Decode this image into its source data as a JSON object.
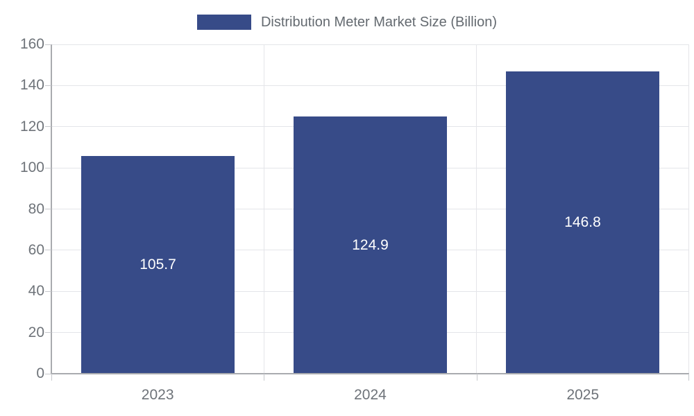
{
  "chart_data": {
    "type": "bar",
    "title": "Distribution Meter Market Size (Billion)",
    "legend_label": "Distribution Meter Market Size (Billion)",
    "legend_position": "top-center",
    "categories": [
      "2023",
      "2024",
      "2025"
    ],
    "series": [
      {
        "name": "Distribution Meter Market Size (Billion)",
        "values": [
          105.7,
          124.9,
          146.8
        ]
      }
    ],
    "bar_labels": [
      "105.7",
      "124.9",
      "146.8"
    ],
    "xlabel": "",
    "ylabel": "",
    "ylim": [
      0,
      160
    ],
    "ytick_interval": 20,
    "ytick_labels": [
      "0",
      "20",
      "40",
      "60",
      "80",
      "100",
      "120",
      "140",
      "160"
    ],
    "grid": true,
    "colors": {
      "bar": "#374B88",
      "grid_line": "#E4E5E9",
      "axis_line": "#A9ABAF",
      "tick_line": "#C6C8CC",
      "axis_text": "#6E7379",
      "legend_text": "#646A70",
      "bar_label_text": "#FFFFFF",
      "background": "#FFFFFF"
    }
  }
}
